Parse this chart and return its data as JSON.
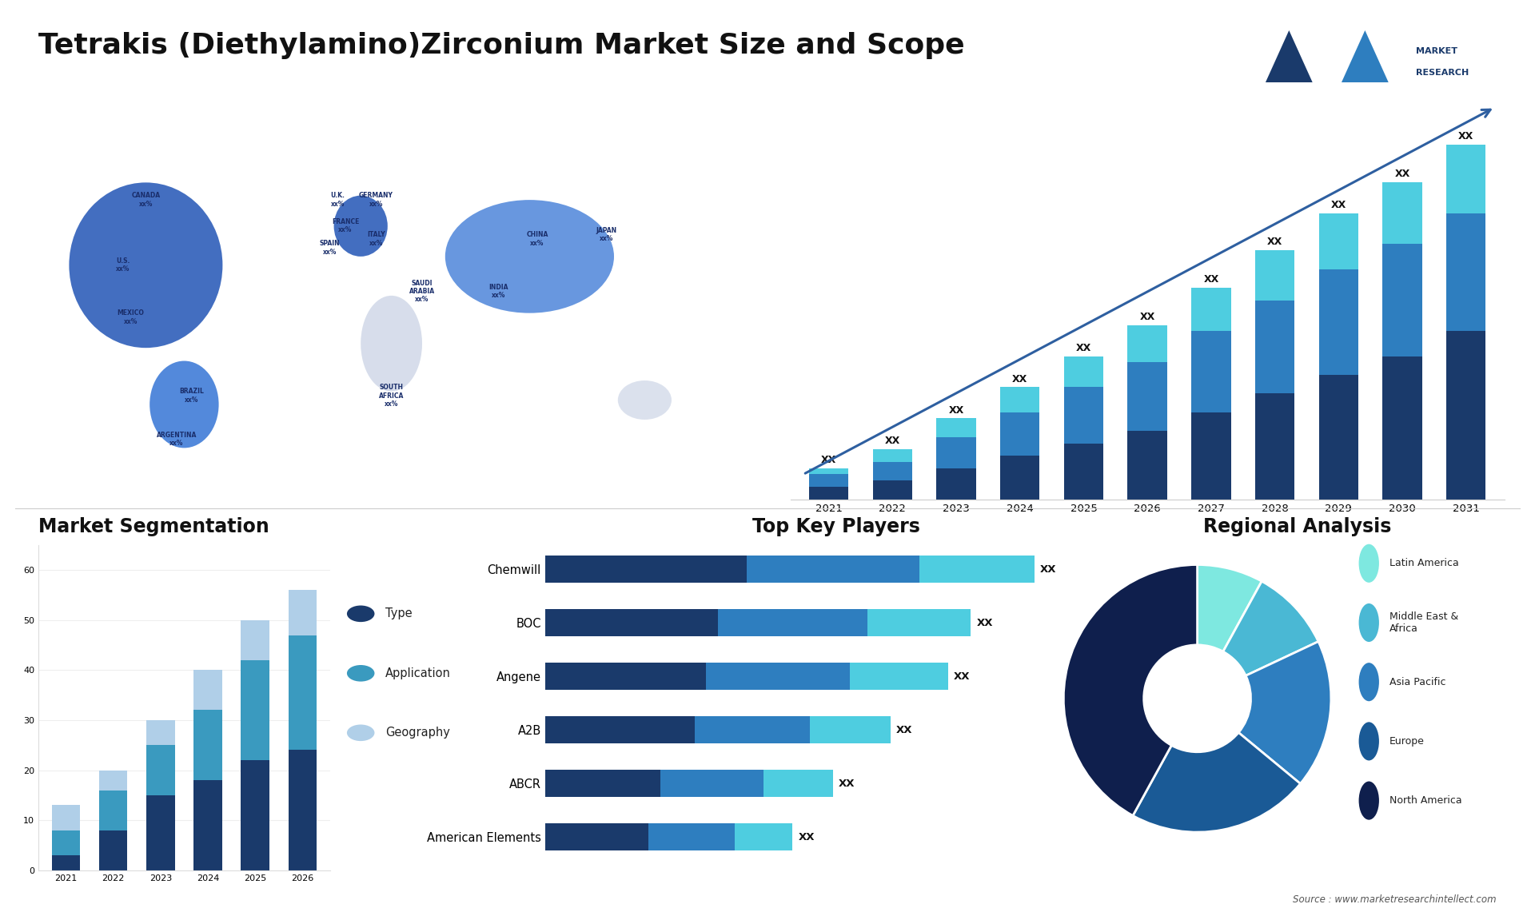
{
  "title": "Tetrakis (Diethylamino)Zirconium Market Size and Scope",
  "title_fontsize": 26,
  "background_color": "#ffffff",
  "bar_chart_years": [
    2021,
    2022,
    2023,
    2024,
    2025,
    2026,
    2027,
    2028,
    2029,
    2030,
    2031
  ],
  "bar_seg1": [
    2,
    3,
    5,
    7,
    9,
    11,
    14,
    17,
    20,
    23,
    27
  ],
  "bar_seg2": [
    2,
    3,
    5,
    7,
    9,
    11,
    13,
    15,
    17,
    18,
    19
  ],
  "bar_seg3": [
    1,
    2,
    3,
    4,
    5,
    6,
    7,
    8,
    9,
    10,
    11
  ],
  "bar_colors": [
    "#1a3a6b",
    "#2e7ebf",
    "#4ecde0"
  ],
  "bar_label": "XX",
  "seg_years": [
    2021,
    2022,
    2023,
    2024,
    2025,
    2026
  ],
  "seg_type": [
    3,
    8,
    15,
    18,
    22,
    24
  ],
  "seg_application": [
    5,
    8,
    10,
    14,
    20,
    23
  ],
  "seg_geography": [
    5,
    4,
    5,
    8,
    8,
    9
  ],
  "seg_colors": [
    "#1a3a6b",
    "#3a9abf",
    "#b0cfe8"
  ],
  "seg_title": "Market Segmentation",
  "seg_legend": [
    "Type",
    "Application",
    "Geography"
  ],
  "players": [
    "Chemwill",
    "BOC",
    "Angene",
    "A2B",
    "ABCR",
    "American Elements"
  ],
  "player_seg1": [
    35,
    30,
    28,
    26,
    20,
    18
  ],
  "player_seg2": [
    30,
    26,
    25,
    20,
    18,
    15
  ],
  "player_seg3": [
    20,
    18,
    17,
    14,
    12,
    10
  ],
  "player_bar_colors": [
    "#1a3a6b",
    "#2e7ebf",
    "#4ecde0"
  ],
  "players_title": "Top Key Players",
  "player_label": "XX",
  "pie_values": [
    8,
    10,
    18,
    22,
    42
  ],
  "pie_colors": [
    "#7ee8e0",
    "#4ab8d4",
    "#2e7ebf",
    "#1a5a96",
    "#0f1f4d"
  ],
  "pie_labels": [
    "Latin America",
    "Middle East &\nAfrica",
    "Asia Pacific",
    "Europe",
    "North America"
  ],
  "pie_title": "Regional Analysis",
  "map_highlight_dark": [
    "#1a3a8f",
    "#2255b5",
    "#3575d5"
  ],
  "map_land_color": "#d8dde8",
  "map_ocean_color": "#f5f7ff",
  "source_text": "Source : www.marketresearchintellect.com"
}
